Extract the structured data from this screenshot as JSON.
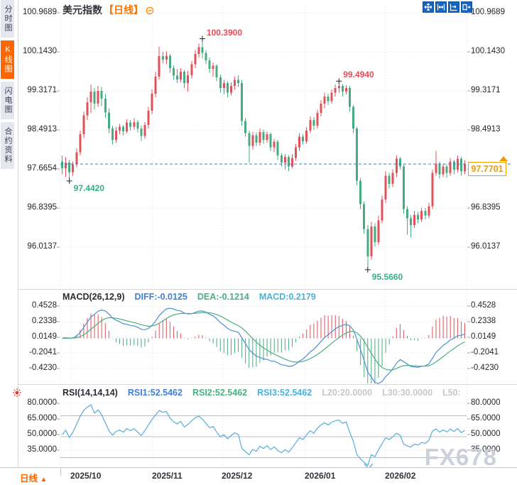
{
  "app": {
    "watermark": "FX678"
  },
  "sidebar": {
    "tabs": [
      {
        "id": "time-share",
        "label": "分时图",
        "active": false
      },
      {
        "id": "kline",
        "label": "K线图",
        "active": true
      },
      {
        "id": "flash",
        "label": "闪电图",
        "active": false
      },
      {
        "id": "contract-info",
        "label": "合约资料",
        "active": false
      }
    ]
  },
  "header": {
    "title": "美元指数",
    "period": "【日线】"
  },
  "toolbar": {
    "buttons": [
      {
        "id": "move",
        "name": "crosshair-move"
      },
      {
        "id": "fitx",
        "name": "fit-horizontal"
      },
      {
        "id": "fity",
        "name": "shift-right"
      },
      {
        "id": "goend",
        "name": "go-to-latest"
      }
    ]
  },
  "price_scale": {
    "labels": [
      "100.9689",
      "100.1430",
      "99.3171",
      "98.4913",
      "97.6654",
      "96.8395",
      "96.0137"
    ],
    "values": [
      100.9689,
      100.143,
      99.3171,
      98.4913,
      97.6654,
      96.8395,
      96.0137
    ]
  },
  "current_price": {
    "label": "97.7701",
    "value": 97.7701
  },
  "annotations": [
    {
      "text": "100.3900",
      "value": 100.39,
      "index": 39,
      "kind": "high"
    },
    {
      "text": "99.4940",
      "value": 99.494,
      "index": 77,
      "kind": "high"
    },
    {
      "text": "97.4420",
      "value": 97.442,
      "index": 2,
      "kind": "low"
    },
    {
      "text": "95.5660",
      "value": 95.566,
      "index": 85,
      "kind": "low"
    }
  ],
  "macd": {
    "title": "MACD(26,12,9)",
    "items": [
      {
        "text": "DIFF:-0.0125",
        "color": "#3f80d8"
      },
      {
        "text": "DEA:-0.1214",
        "color": "#4caf84"
      },
      {
        "text": "MACD:0.2179",
        "color": "#47b2dd"
      }
    ],
    "scale_labels": [
      "0.4528",
      "0.2338",
      "0.0149",
      "-0.2041",
      "-0.4230"
    ],
    "scale_values": [
      0.4528,
      0.2338,
      0.0149,
      -0.2041,
      -0.423
    ]
  },
  "rsi": {
    "title": "RSI(14,14,14)",
    "items": [
      {
        "text": "RSI1:52.5462",
        "color": "#3f80d8"
      },
      {
        "text": "RSI2:52.5462",
        "color": "#4caf84"
      },
      {
        "text": "RSI3:52.5462",
        "color": "#47b2dd"
      },
      {
        "text": "L20:20.0000",
        "color": "#c8c8cc"
      },
      {
        "text": "L30:30.0000",
        "color": "#c8c8cc"
      },
      {
        "text": "L50:",
        "color": "#c8c8cc"
      }
    ],
    "scale_labels": [
      "80.0000",
      "65.0000",
      "50.0000",
      "35.0000"
    ],
    "scale_values": [
      80,
      65,
      50,
      35
    ],
    "solid_levels": [
      70,
      50,
      30
    ]
  },
  "x_axis": {
    "labels": [
      "2025/10",
      "2025/11",
      "2025/12",
      "2026/01",
      "2026/02"
    ],
    "positions": [
      99,
      214,
      312,
      429,
      542
    ],
    "gridx": [
      85,
      100,
      215,
      313,
      430,
      543,
      657
    ]
  },
  "bottom_bar": {
    "period": "日线",
    "arrow": "▲"
  },
  "colors": {
    "up": "#e0515a",
    "down": "#46ab80",
    "diff_line": "#4a8fd8",
    "dea_line": "#4caf84",
    "rsi_line": "#56aede",
    "price_line": "#2f7fd1",
    "accent": "#ff6600",
    "badge": "#f09a00",
    "button_blue": "#1565c0",
    "grid": "#dcdde0",
    "solid_grid": "#b9bcc2"
  },
  "chart_data": {
    "type": "candlestick",
    "symbol": "美元指数",
    "interval": "日线",
    "x_ticks": [
      "2025/10",
      "2025/11",
      "2025/12",
      "2026/01",
      "2026/02"
    ],
    "y_ticks": [
      100.9689,
      100.143,
      99.3171,
      98.4913,
      97.6654,
      96.8395,
      96.0137
    ],
    "ylim": [
      95.16,
      101.09
    ],
    "current": 97.7701,
    "extremes": {
      "period_high": 100.39,
      "secondary_high": 99.494,
      "early_low": 97.442,
      "period_low": 95.566
    },
    "macd_params": [
      26,
      12,
      9
    ],
    "macd_last": {
      "diff": -0.0125,
      "dea": -0.1214,
      "macd": 0.2179
    },
    "macd_ylim": [
      -0.632,
      0.662
    ],
    "rsi_params": [
      14,
      14,
      14
    ],
    "rsi_last": {
      "rsi1": 52.5462,
      "rsi2": 52.5462,
      "rsi3": 52.5462
    },
    "rsi_levels": {
      "L20": 20,
      "L30": 30,
      "L50": null
    },
    "rsi_ylim": [
      19,
      85
    ],
    "candles": [
      [
        97.82,
        97.95,
        97.55,
        97.68
      ],
      [
        97.68,
        97.92,
        97.5,
        97.8
      ],
      [
        97.8,
        97.86,
        97.442,
        97.6
      ],
      [
        97.6,
        97.82,
        97.52,
        97.76
      ],
      [
        97.76,
        98.1,
        97.7,
        98.02
      ],
      [
        98.02,
        98.48,
        97.95,
        98.4
      ],
      [
        98.4,
        98.88,
        98.32,
        98.8
      ],
      [
        98.8,
        99.18,
        98.7,
        99.08
      ],
      [
        99.08,
        99.45,
        98.85,
        99.3
      ],
      [
        99.3,
        99.38,
        98.92,
        99.05
      ],
      [
        99.05,
        99.42,
        98.98,
        99.32
      ],
      [
        99.32,
        99.4,
        99.0,
        99.15
      ],
      [
        99.15,
        99.26,
        98.75,
        98.86
      ],
      [
        98.86,
        98.95,
        98.42,
        98.52
      ],
      [
        98.52,
        98.58,
        98.18,
        98.28
      ],
      [
        98.28,
        98.55,
        98.22,
        98.48
      ],
      [
        98.48,
        98.62,
        98.4,
        98.56
      ],
      [
        98.56,
        98.6,
        98.38,
        98.46
      ],
      [
        98.46,
        98.72,
        98.42,
        98.65
      ],
      [
        98.65,
        98.7,
        98.48,
        98.56
      ],
      [
        98.56,
        98.74,
        98.5,
        98.66
      ],
      [
        98.66,
        98.7,
        98.44,
        98.52
      ],
      [
        98.52,
        98.58,
        98.26,
        98.36
      ],
      [
        98.36,
        98.66,
        98.3,
        98.6
      ],
      [
        98.6,
        98.98,
        98.52,
        98.9
      ],
      [
        98.9,
        99.35,
        98.82,
        99.26
      ],
      [
        99.26,
        99.72,
        99.18,
        99.62
      ],
      [
        99.62,
        100.25,
        99.55,
        100.05
      ],
      [
        100.05,
        100.14,
        99.9,
        99.98
      ],
      [
        99.98,
        100.15,
        99.88,
        100.06
      ],
      [
        100.06,
        100.1,
        99.7,
        99.8
      ],
      [
        99.8,
        99.86,
        99.55,
        99.64
      ],
      [
        99.64,
        99.78,
        99.48,
        99.56
      ],
      [
        99.56,
        99.8,
        99.5,
        99.72
      ],
      [
        99.72,
        99.76,
        99.38,
        99.48
      ],
      [
        99.48,
        99.74,
        99.3,
        99.65
      ],
      [
        99.65,
        99.95,
        99.58,
        99.88
      ],
      [
        99.88,
        100.18,
        99.8,
        100.1
      ],
      [
        100.1,
        100.32,
        100.02,
        100.24
      ],
      [
        100.24,
        100.39,
        100.0,
        100.12
      ],
      [
        100.12,
        100.18,
        99.88,
        99.96
      ],
      [
        99.96,
        100.02,
        99.7,
        99.78
      ],
      [
        99.78,
        99.92,
        99.62,
        99.85
      ],
      [
        99.85,
        99.88,
        99.52,
        99.6
      ],
      [
        99.6,
        99.66,
        99.28,
        99.38
      ],
      [
        99.38,
        99.55,
        99.25,
        99.48
      ],
      [
        99.48,
        99.52,
        99.18,
        99.28
      ],
      [
        99.28,
        99.5,
        99.22,
        99.42
      ],
      [
        99.42,
        99.62,
        99.35,
        99.55
      ],
      [
        99.55,
        99.65,
        99.4,
        99.48
      ],
      [
        99.48,
        99.55,
        98.58,
        98.68
      ],
      [
        98.68,
        98.75,
        98.35,
        98.42
      ],
      [
        98.42,
        98.48,
        97.8,
        98.15
      ],
      [
        98.15,
        98.45,
        98.08,
        98.38
      ],
      [
        98.38,
        98.44,
        98.15,
        98.22
      ],
      [
        98.22,
        98.52,
        98.16,
        98.45
      ],
      [
        98.45,
        98.5,
        98.2,
        98.28
      ],
      [
        98.28,
        98.46,
        98.22,
        98.4
      ],
      [
        98.4,
        98.44,
        98.05,
        98.12
      ],
      [
        98.12,
        98.3,
        98.02,
        98.24
      ],
      [
        98.24,
        98.28,
        97.85,
        97.95
      ],
      [
        97.95,
        98.0,
        97.72,
        97.8
      ],
      [
        97.8,
        97.98,
        97.66,
        97.92
      ],
      [
        97.92,
        97.96,
        97.62,
        97.72
      ],
      [
        97.72,
        97.98,
        97.68,
        97.9
      ],
      [
        97.9,
        98.2,
        97.84,
        98.12
      ],
      [
        98.12,
        98.42,
        98.05,
        98.35
      ],
      [
        98.35,
        98.4,
        98.18,
        98.25
      ],
      [
        98.25,
        98.55,
        98.2,
        98.48
      ],
      [
        98.48,
        98.78,
        98.42,
        98.7
      ],
      [
        98.7,
        98.76,
        98.5,
        98.58
      ],
      [
        98.58,
        98.92,
        98.52,
        98.85
      ],
      [
        98.85,
        99.12,
        98.78,
        99.05
      ],
      [
        99.05,
        99.28,
        98.95,
        99.2
      ],
      [
        99.2,
        99.26,
        99.02,
        99.1
      ],
      [
        99.1,
        99.35,
        99.05,
        99.28
      ],
      [
        99.28,
        99.45,
        99.2,
        99.38
      ],
      [
        99.38,
        99.494,
        99.28,
        99.42
      ],
      [
        99.42,
        99.46,
        99.2,
        99.3
      ],
      [
        99.3,
        99.44,
        99.24,
        99.38
      ],
      [
        99.38,
        99.42,
        98.88,
        98.98
      ],
      [
        98.98,
        99.02,
        98.42,
        98.52
      ],
      [
        98.52,
        98.56,
        97.32,
        97.42
      ],
      [
        97.42,
        97.48,
        96.82,
        96.92
      ],
      [
        96.92,
        96.98,
        96.3,
        96.4
      ],
      [
        96.4,
        96.48,
        95.566,
        95.82
      ],
      [
        95.82,
        96.55,
        95.75,
        96.45
      ],
      [
        96.45,
        96.52,
        96.02,
        96.12
      ],
      [
        96.12,
        96.68,
        96.06,
        96.58
      ],
      [
        96.58,
        97.1,
        96.52,
        97.02
      ],
      [
        97.02,
        97.62,
        96.95,
        97.52
      ],
      [
        97.52,
        97.58,
        97.25,
        97.35
      ],
      [
        97.35,
        97.66,
        97.28,
        97.58
      ],
      [
        97.58,
        97.95,
        97.5,
        97.88
      ],
      [
        97.88,
        97.92,
        97.65,
        97.72
      ],
      [
        97.72,
        97.78,
        96.72,
        96.82
      ],
      [
        96.82,
        96.88,
        96.28,
        96.62
      ],
      [
        96.62,
        96.7,
        96.22,
        96.48
      ],
      [
        96.48,
        96.78,
        96.42,
        96.7
      ],
      [
        96.7,
        96.76,
        96.52,
        96.6
      ],
      [
        96.6,
        96.85,
        96.55,
        96.78
      ],
      [
        96.78,
        96.84,
        96.6,
        96.68
      ],
      [
        96.68,
        96.95,
        96.62,
        96.88
      ],
      [
        96.88,
        97.65,
        96.82,
        97.58
      ],
      [
        97.58,
        98.05,
        97.52,
        97.78
      ],
      [
        97.78,
        97.82,
        97.46,
        97.55
      ],
      [
        97.55,
        97.78,
        97.5,
        97.72
      ],
      [
        97.72,
        97.76,
        97.48,
        97.58
      ],
      [
        97.58,
        97.9,
        97.52,
        97.82
      ],
      [
        97.82,
        97.86,
        97.55,
        97.65
      ],
      [
        97.65,
        97.95,
        97.6,
        97.88
      ],
      [
        97.88,
        97.92,
        97.52,
        97.62
      ],
      [
        97.62,
        97.85,
        97.55,
        97.7701
      ]
    ]
  }
}
